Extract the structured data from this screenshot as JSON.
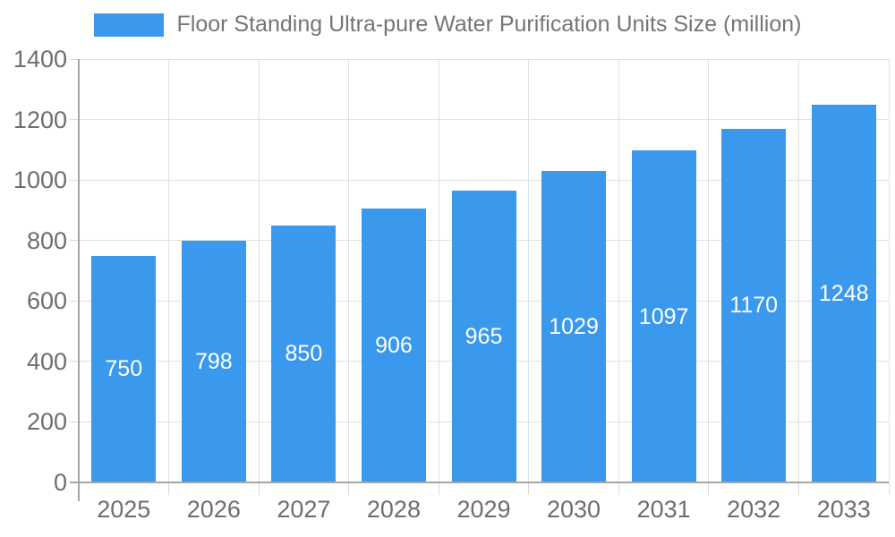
{
  "legend": {
    "label": "Floor Standing Ultra-pure Water Purification Units Size (million)"
  },
  "chart_data": {
    "type": "bar",
    "title": "",
    "xlabel": "",
    "ylabel": "",
    "categories": [
      "2025",
      "2026",
      "2027",
      "2028",
      "2029",
      "2030",
      "2031",
      "2032",
      "2033"
    ],
    "series": [
      {
        "name": "Floor Standing Ultra-pure Water Purification Units Size (million)",
        "values": [
          750,
          798,
          850,
          906,
          965,
          1029,
          1097,
          1170,
          1248
        ]
      }
    ],
    "ylim": [
      0,
      1400
    ],
    "yticks": [
      0,
      200,
      400,
      600,
      800,
      1000,
      1200,
      1400
    ],
    "grid": true,
    "legend_position": "top",
    "value_label_position": "inside-center"
  },
  "colors": {
    "bar": "#3A99EC",
    "grid_line": "#E1E1E1",
    "axis_line": "#A6A6A6",
    "tick_mark": "#D8D8D8",
    "tick_label": "#6E6E6E",
    "legend_text": "#757575",
    "value_label_text": "#FFFFFF",
    "background": "#FFFFFF"
  }
}
